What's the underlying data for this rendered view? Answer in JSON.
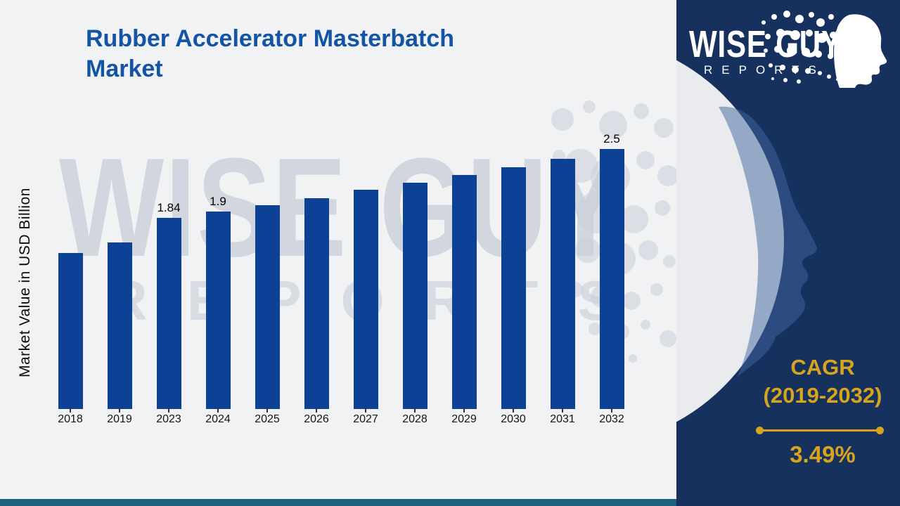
{
  "title": {
    "line1": "Rubber Accelerator Masterbatch",
    "line2": "Market"
  },
  "y_axis_label": "Market Value in USD Billion",
  "watermark": {
    "line1": "WISE GUY",
    "line2": "REPORTS",
    "icon": "dotted-face-profile-icon"
  },
  "logo": {
    "brand_line1": "WISE GUY",
    "brand_line2": "REPORTS",
    "icon": "dotted-face-profile-icon"
  },
  "cagr": {
    "heading": "CAGR",
    "range": "(2019-2032)",
    "value": "3.49%"
  },
  "chart_data": {
    "type": "bar",
    "title": "Rubber Accelerator Masterbatch Market",
    "xlabel": "",
    "ylabel": "Market Value in USD Billion",
    "categories": [
      "2018",
      "2019",
      "2023",
      "2024",
      "2025",
      "2026",
      "2027",
      "2028",
      "2029",
      "2030",
      "2031",
      "2032"
    ],
    "values": [
      1.5,
      1.6,
      1.84,
      1.9,
      1.96,
      2.03,
      2.11,
      2.18,
      2.25,
      2.33,
      2.41,
      2.5
    ],
    "bar_labels": {
      "2023": "1.84",
      "2024": "1.9",
      "2032": "2.5"
    },
    "ylim": [
      0,
      2.9
    ],
    "grid": false,
    "legend": "none"
  },
  "colors": {
    "bar": "#0c4195",
    "title": "#1454a4",
    "panel_navy": "#16315e",
    "accent_gold": "#d7a41d",
    "teal_strip": "#1e6180",
    "background": "#f1f2f3"
  }
}
